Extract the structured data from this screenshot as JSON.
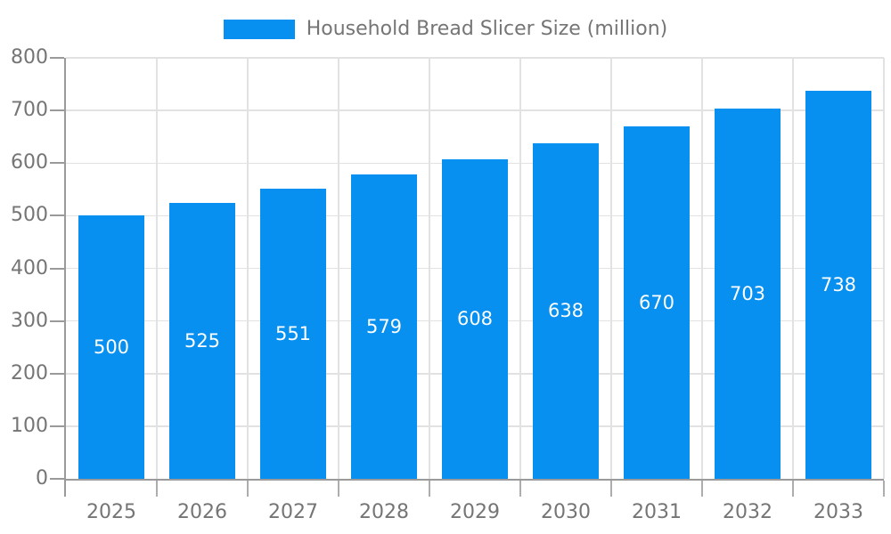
{
  "chart_data": {
    "type": "bar",
    "title": "Household Bread Slicer Size (million)",
    "series_name": "Household Bread Slicer Size (million)",
    "categories": [
      "2025",
      "2026",
      "2027",
      "2028",
      "2029",
      "2030",
      "2031",
      "2032",
      "2033"
    ],
    "values": [
      500,
      525,
      551,
      579,
      608,
      638,
      670,
      703,
      738
    ],
    "xlabel": "",
    "ylabel": "",
    "ylim": [
      0,
      800
    ],
    "yticks": [
      0,
      100,
      200,
      300,
      400,
      500,
      600,
      700,
      800
    ],
    "grid": true,
    "legend_position": "top",
    "colors": {
      "bar": "#0890F0",
      "bar_label": "#FFFFFF",
      "grid": "#E2E2E2",
      "axis": "#9A9A9A",
      "tick": "#ADADAD",
      "text": "#757575",
      "background": "#FFFFFF"
    }
  }
}
